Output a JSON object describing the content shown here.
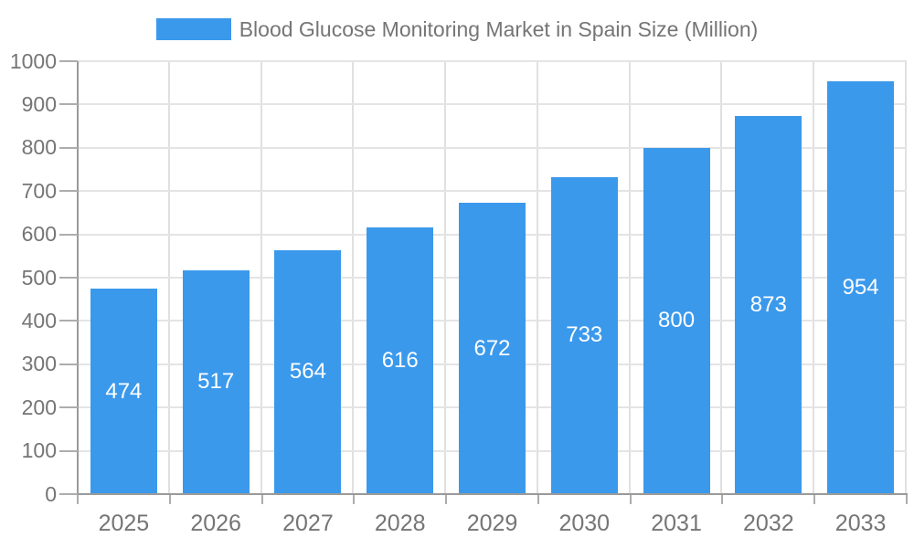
{
  "chart_data": {
    "type": "bar",
    "title": "Blood Glucose Monitoring Market in Spain Size (Million)",
    "legend": [
      "Blood Glucose Monitoring Market in Spain Size (Million)"
    ],
    "legend_position": "top-center",
    "categories": [
      "2025",
      "2026",
      "2027",
      "2028",
      "2029",
      "2030",
      "2031",
      "2032",
      "2033"
    ],
    "series": [
      {
        "name": "Blood Glucose Monitoring Market in Spain Size (Million)",
        "values": [
          474,
          517,
          564,
          616,
          672,
          733,
          800,
          873,
          954
        ]
      }
    ],
    "xlabel": "",
    "ylabel": "",
    "ylim": [
      0,
      1000
    ],
    "yticks": [
      0,
      100,
      200,
      300,
      400,
      500,
      600,
      700,
      800,
      900,
      1000
    ],
    "grid": true,
    "value_labels": "inside-center",
    "colors": {
      "bar": "#3B99EC",
      "value_label": "#FFFFFF",
      "axis_text": "#757575",
      "gridline": "#E4E4E4",
      "axis_line": "#9A9A9A",
      "tick": "#ADADAD",
      "background": "#FFFFFF"
    }
  }
}
